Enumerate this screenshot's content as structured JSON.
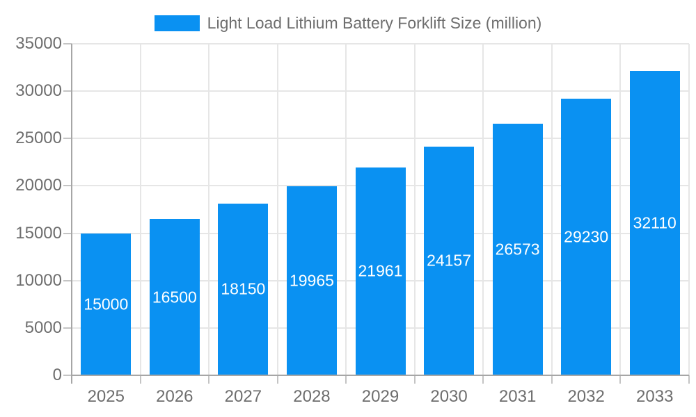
{
  "legend": {
    "label": "Light Load Lithium Battery Forklift Size (million)"
  },
  "colors": {
    "bar": "#0a91f2",
    "grid": "#e6e6e6",
    "axis": "#a6a6a6",
    "tick": "#c4c4c4",
    "axis_text": "#6e6e6e",
    "value_text": "#ffffff",
    "background": "#ffffff"
  },
  "chart_data": {
    "type": "bar",
    "title": "Light Load Lithium Battery Forklift Size (million)",
    "categories": [
      "2025",
      "2026",
      "2027",
      "2028",
      "2029",
      "2030",
      "2031",
      "2032",
      "2033"
    ],
    "values": [
      15000,
      16500,
      18150,
      19965,
      21961,
      24157,
      26573,
      29230,
      32110
    ],
    "series": [
      {
        "name": "Light Load Lithium Battery Forklift Size (million)",
        "values": [
          15000,
          16500,
          18150,
          19965,
          21961,
          24157,
          26573,
          29230,
          32110
        ]
      }
    ],
    "xlabel": "",
    "ylabel": "",
    "ylim": [
      0,
      35000
    ],
    "yticks": [
      0,
      5000,
      10000,
      15000,
      20000,
      25000,
      30000,
      35000
    ],
    "grid": true,
    "legend_position": "top",
    "value_label_position": "inside-center"
  }
}
